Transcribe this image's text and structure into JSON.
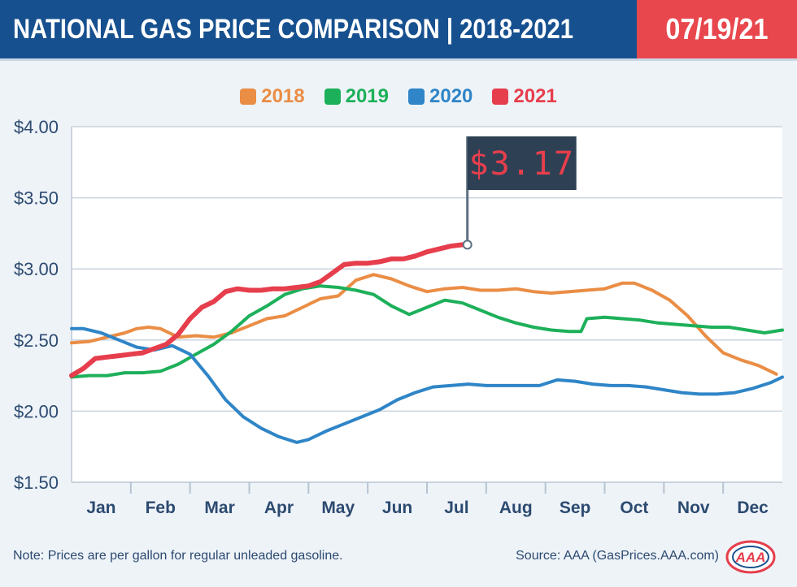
{
  "header": {
    "title": "NATIONAL GAS PRICE COMPARISON | 2018-2021",
    "date": "07/19/21"
  },
  "colors": {
    "title_bg": "#16508f",
    "date_bg": "#e8474d",
    "y2018": "#ea8d45",
    "y2019": "#1db05a",
    "y2020": "#2f85c7",
    "y2021": "#e63e4c",
    "callout_bg": "#2e4154",
    "callout_text": "#e63e4c"
  },
  "callout": {
    "value": "$3.17"
  },
  "footer": {
    "note": "Note: Prices are per gallon for regular unleaded gasoline.",
    "source": "Source: AAA (GasPrices.AAA.com)",
    "logo_text": "AAA"
  },
  "chart_data": {
    "type": "line",
    "title": "NATIONAL GAS PRICE COMPARISON | 2018-2021",
    "xlabel": "",
    "ylabel": "",
    "x_range": [
      0,
      12
    ],
    "ylim": [
      1.5,
      4.0
    ],
    "y_ticks": [
      1.5,
      2.0,
      2.5,
      3.0,
      3.5,
      4.0
    ],
    "y_tick_labels": [
      "$1.50",
      "$2.00",
      "$2.50",
      "$3.00",
      "$3.50",
      "$4.00"
    ],
    "categories": [
      "Jan",
      "Feb",
      "Mar",
      "Apr",
      "May",
      "Jun",
      "Jul",
      "Aug",
      "Sep",
      "Oct",
      "Nov",
      "Dec"
    ],
    "grid": true,
    "legend": "top-center",
    "series": [
      {
        "name": "2018",
        "color": "#ea8d45",
        "x": [
          0,
          0.3,
          0.6,
          0.9,
          1.1,
          1.3,
          1.5,
          1.8,
          2.1,
          2.4,
          2.7,
          3.0,
          3.3,
          3.6,
          3.9,
          4.2,
          4.5,
          4.8,
          5.1,
          5.4,
          5.7,
          6.0,
          6.3,
          6.6,
          6.9,
          7.2,
          7.5,
          7.8,
          8.1,
          8.4,
          8.7,
          9.0,
          9.3,
          9.5,
          9.8,
          10.1,
          10.4,
          10.7,
          11.0,
          11.3,
          11.6,
          11.9
        ],
        "y": [
          2.48,
          2.49,
          2.52,
          2.55,
          2.58,
          2.59,
          2.58,
          2.52,
          2.53,
          2.52,
          2.55,
          2.6,
          2.65,
          2.67,
          2.73,
          2.79,
          2.81,
          2.92,
          2.96,
          2.93,
          2.88,
          2.84,
          2.86,
          2.87,
          2.85,
          2.85,
          2.86,
          2.84,
          2.83,
          2.84,
          2.85,
          2.86,
          2.9,
          2.9,
          2.85,
          2.78,
          2.67,
          2.53,
          2.41,
          2.36,
          2.32,
          2.26
        ]
      },
      {
        "name": "2019",
        "color": "#1db05a",
        "x": [
          0,
          0.3,
          0.6,
          0.9,
          1.2,
          1.5,
          1.8,
          2.1,
          2.4,
          2.7,
          3.0,
          3.3,
          3.6,
          3.9,
          4.2,
          4.5,
          4.8,
          5.1,
          5.4,
          5.7,
          6.0,
          6.3,
          6.6,
          6.9,
          7.2,
          7.5,
          7.8,
          8.1,
          8.4,
          8.6,
          8.7,
          9.0,
          9.3,
          9.6,
          9.9,
          10.2,
          10.5,
          10.8,
          11.1,
          11.4,
          11.7,
          12.0
        ],
        "y": [
          2.24,
          2.25,
          2.25,
          2.27,
          2.27,
          2.28,
          2.33,
          2.4,
          2.47,
          2.56,
          2.67,
          2.74,
          2.82,
          2.86,
          2.88,
          2.87,
          2.85,
          2.82,
          2.74,
          2.68,
          2.73,
          2.78,
          2.76,
          2.71,
          2.66,
          2.62,
          2.59,
          2.57,
          2.56,
          2.56,
          2.65,
          2.66,
          2.65,
          2.64,
          2.62,
          2.61,
          2.6,
          2.59,
          2.59,
          2.57,
          2.55,
          2.57
        ]
      },
      {
        "name": "2020",
        "color": "#2f85c7",
        "x": [
          0,
          0.2,
          0.5,
          0.8,
          1.1,
          1.4,
          1.7,
          2.0,
          2.3,
          2.6,
          2.9,
          3.2,
          3.5,
          3.8,
          4.0,
          4.3,
          4.6,
          4.9,
          5.2,
          5.5,
          5.8,
          6.1,
          6.4,
          6.7,
          7.0,
          7.3,
          7.6,
          7.9,
          8.2,
          8.5,
          8.8,
          9.1,
          9.4,
          9.7,
          10.0,
          10.3,
          10.6,
          10.9,
          11.2,
          11.5,
          11.8,
          12.0
        ],
        "y": [
          2.58,
          2.58,
          2.55,
          2.5,
          2.45,
          2.43,
          2.46,
          2.4,
          2.25,
          2.08,
          1.96,
          1.88,
          1.82,
          1.78,
          1.8,
          1.86,
          1.91,
          1.96,
          2.01,
          2.08,
          2.13,
          2.17,
          2.18,
          2.19,
          2.18,
          2.18,
          2.18,
          2.18,
          2.22,
          2.21,
          2.19,
          2.18,
          2.18,
          2.17,
          2.15,
          2.13,
          2.12,
          2.12,
          2.13,
          2.16,
          2.2,
          2.24
        ]
      },
      {
        "name": "2021",
        "color": "#e63e4c",
        "x": [
          0,
          0.2,
          0.4,
          0.6,
          0.8,
          1.0,
          1.2,
          1.4,
          1.6,
          1.8,
          2.0,
          2.2,
          2.4,
          2.6,
          2.8,
          3.0,
          3.2,
          3.4,
          3.6,
          3.8,
          4.0,
          4.2,
          4.4,
          4.6,
          4.8,
          5.0,
          5.2,
          5.4,
          5.6,
          5.8,
          6.0,
          6.2,
          6.4,
          6.6
        ],
        "y": [
          2.25,
          2.3,
          2.37,
          2.38,
          2.39,
          2.4,
          2.41,
          2.44,
          2.47,
          2.54,
          2.65,
          2.73,
          2.77,
          2.84,
          2.86,
          2.85,
          2.85,
          2.86,
          2.86,
          2.87,
          2.88,
          2.91,
          2.97,
          3.03,
          3.04,
          3.04,
          3.05,
          3.07,
          3.07,
          3.09,
          3.12,
          3.14,
          3.16,
          3.17
        ]
      }
    ]
  }
}
